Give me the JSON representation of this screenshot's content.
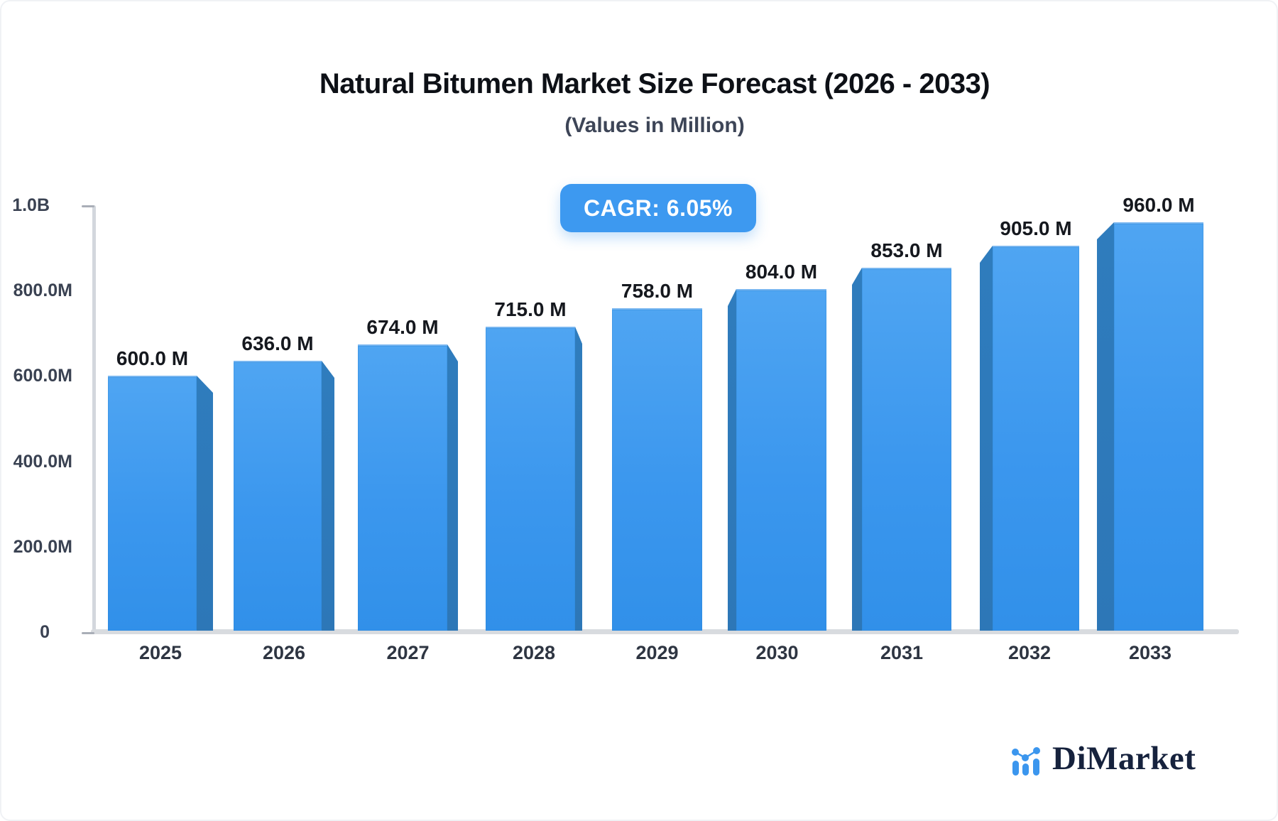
{
  "header": {
    "title": "Natural Bitumen Market Size Forecast (2026 - 2033)",
    "subtitle": "(Values in Million)",
    "cagr_label": "CAGR: 6.05%"
  },
  "chart_data": {
    "type": "bar",
    "title": "Natural Bitumen Market Size Forecast (2026 - 2033)",
    "subtitle": "(Values in Million)",
    "categories": [
      "2025",
      "2026",
      "2027",
      "2028",
      "2029",
      "2030",
      "2031",
      "2032",
      "2033"
    ],
    "values": [
      600.0,
      636.0,
      674.0,
      715.0,
      758.0,
      804.0,
      853.0,
      905.0,
      960.0
    ],
    "value_label_suffix": " M",
    "y_ticks": [
      "1.0B",
      "800.0M",
      "600.0M",
      "400.0M",
      "200.0M",
      "0"
    ],
    "y_tick_values": [
      1000,
      800,
      600,
      400,
      200,
      0
    ],
    "ylim": [
      0,
      1000
    ],
    "grid": "off",
    "legend": "none",
    "annotation": "CAGR: 6.05%",
    "bar_color": "#3b97ee",
    "bar_side_color": "#2d77b7",
    "axis_color": "#d3d7dd",
    "label_color": "#15181e"
  },
  "branding": {
    "logo_text": "DiMarket",
    "logo_icon": "bar-chart-trend-icon",
    "logo_color": "#3b96ee",
    "logo_text_color": "#16223d"
  }
}
